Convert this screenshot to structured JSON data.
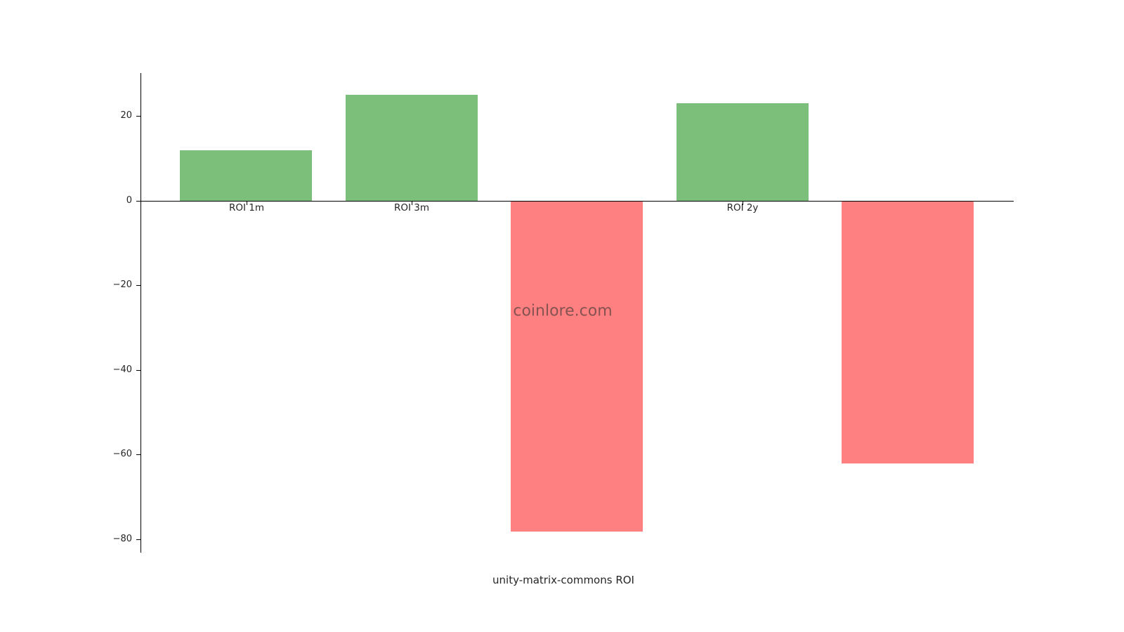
{
  "figure": {
    "background": "#ffffff"
  },
  "chart_data": {
    "type": "bar",
    "title": "unity-matrix-commons ROI",
    "watermark": "coinlore.com",
    "categories": [
      "ROI 1m",
      "ROI 3m",
      "",
      "ROI 2y",
      ""
    ],
    "values": [
      12,
      25,
      -78,
      23,
      -62
    ],
    "bar_colors": [
      "#7bbf7b",
      "#7bbf7b",
      "#ff8080",
      "#7bbf7b",
      "#ff8080"
    ],
    "positive_color": "#7bbf7b",
    "negative_color": "#ff8080",
    "yticks": [
      20,
      0,
      -20,
      -40,
      -60,
      -80
    ],
    "ytick_labels": [
      "20",
      "0",
      "−20",
      "−40",
      "−60",
      "−80"
    ],
    "ylim": [
      -83.2,
      30.2
    ],
    "xlabel": "",
    "ylabel": "",
    "grid": false,
    "legend_position": "none"
  },
  "colors": {
    "axis": "#000000",
    "tick_label": "#262626",
    "title_text": "#262626"
  }
}
